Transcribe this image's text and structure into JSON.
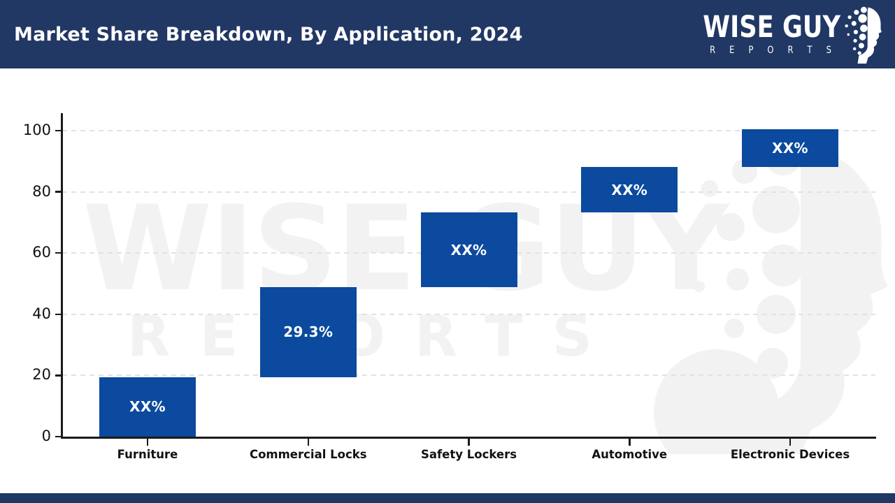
{
  "header": {
    "title": "Market Share Breakdown, By Application, 2024",
    "background_color": "#213764"
  },
  "logo": {
    "line1": "WISE GUY",
    "line2": "R E P O R T S",
    "head_icon": "dotted-head-profile"
  },
  "watermark": {
    "line1": "WISE GUY",
    "line2": "REPORTS",
    "head_icon": "dotted-head-profile",
    "color": "#f2f2f3"
  },
  "footer": {
    "background_color": "#213764"
  },
  "chart_data": {
    "type": "bar",
    "subtype": "waterfall",
    "title": "Market Share Breakdown, By Application, 2024",
    "xlabel": "",
    "ylabel": "",
    "ylim": [
      0,
      106
    ],
    "yticks": [
      0,
      20,
      40,
      60,
      80,
      100
    ],
    "grid": "horizontal-dashed",
    "legend": "none",
    "bar_color": "#0b4a9e",
    "bar_label_color": "#ffffff",
    "categories": [
      "Furniture",
      "Commercial Locks",
      "Safety Lockers",
      "Automotive",
      "Electronic Devices"
    ],
    "bars": [
      {
        "category": "Furniture",
        "start": 0,
        "end": 19.5,
        "height": 19.5,
        "label": "XX%"
      },
      {
        "category": "Commercial Locks",
        "start": 19.5,
        "end": 48.8,
        "height": 29.3,
        "label": "29.3%"
      },
      {
        "category": "Safety Lockers",
        "start": 48.8,
        "end": 73.2,
        "height": 24.4,
        "label": "XX%"
      },
      {
        "category": "Automotive",
        "start": 73.2,
        "end": 88.2,
        "height": 15.0,
        "label": "XX%"
      },
      {
        "category": "Electronic Devices",
        "start": 88.2,
        "end": 100.4,
        "height": 12.2,
        "label": "XX%"
      }
    ]
  }
}
